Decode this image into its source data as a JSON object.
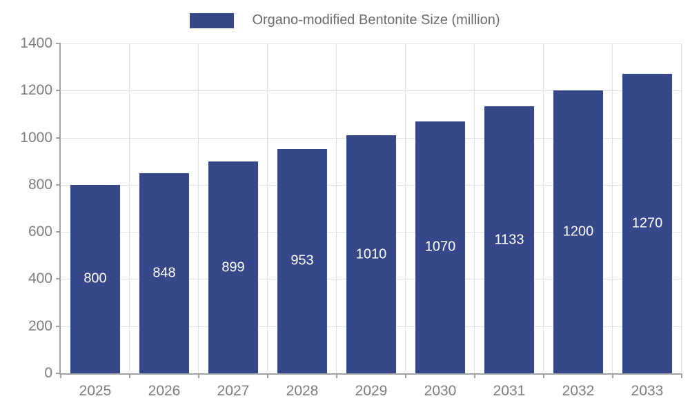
{
  "chart_data": {
    "type": "bar",
    "legend": "Organo-modified Bentonite Size (million)",
    "legend_position": "top",
    "categories": [
      "2025",
      "2026",
      "2027",
      "2028",
      "2029",
      "2030",
      "2031",
      "2032",
      "2033"
    ],
    "values": [
      800,
      848,
      899,
      953,
      1010,
      1070,
      1133,
      1200,
      1270
    ],
    "ylim": [
      0,
      1400
    ],
    "ytick_step": 200,
    "grid": true,
    "bar_color": "#37488a",
    "value_label_color": "#ffffff",
    "axis_color": "#a2a2a2",
    "grid_color": "#e2e2e2",
    "tick_label_color": "#7d7d7d",
    "legend_text_color": "#6b6b6b"
  }
}
